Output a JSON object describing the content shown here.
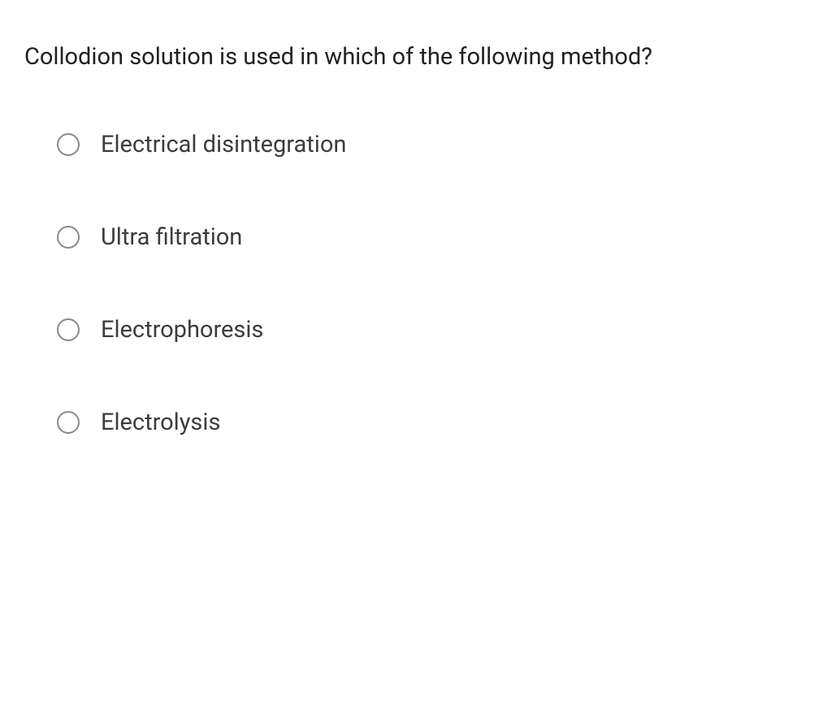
{
  "question": {
    "text": "Collodion solution is used in which of the following method?",
    "font_size": 29,
    "color": "#202124"
  },
  "options": [
    {
      "label": "Electrical disintegration",
      "selected": false
    },
    {
      "label": "Ultra filtration",
      "selected": false
    },
    {
      "label": "Electrophoresis",
      "selected": false
    },
    {
      "label": "Electrolysis",
      "selected": false
    }
  ],
  "styling": {
    "background_color": "#ffffff",
    "option_font_size": 29,
    "option_color": "#3b3c3e",
    "radio_border_color": "#888a8c",
    "radio_size": 28,
    "option_spacing": 80,
    "question_margin_bottom": 70
  }
}
